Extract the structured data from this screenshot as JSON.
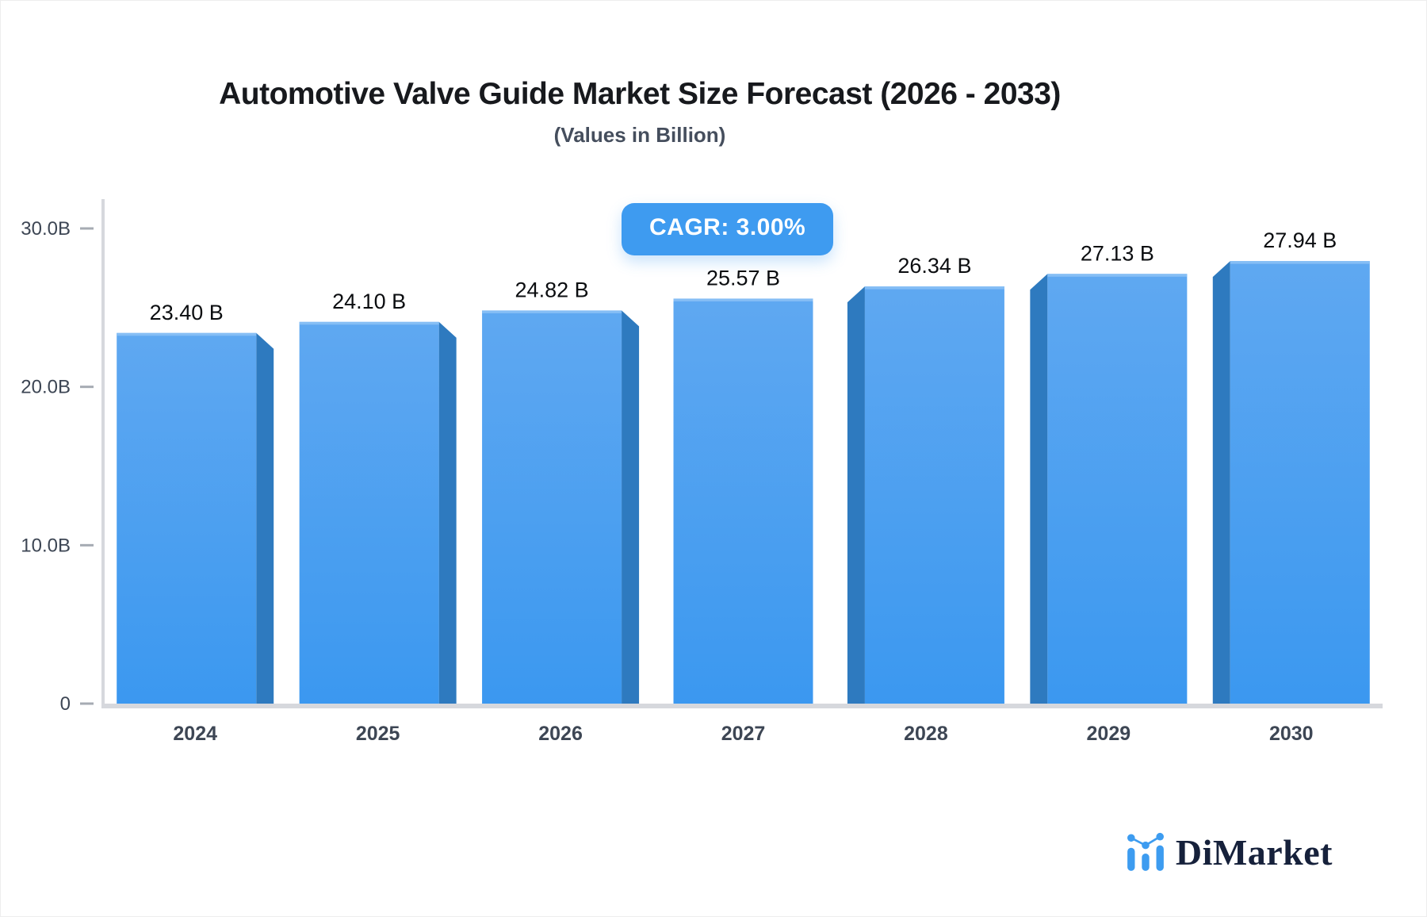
{
  "header": {
    "title": "Automotive Valve Guide Market Size Forecast (2026 - 2033)",
    "subtitle": "(Values in Billion)",
    "cagr_badge": "CAGR: 3.00%"
  },
  "chart_data": {
    "type": "bar",
    "title": "Automotive Valve Guide Market Size Forecast (2026 - 2033)",
    "subtitle": "(Values in Billion)",
    "annotation": "CAGR: 3.00%",
    "categories": [
      "2024",
      "2025",
      "2026",
      "2027",
      "2028",
      "2029",
      "2030"
    ],
    "values": [
      23.4,
      24.1,
      24.82,
      25.57,
      26.34,
      27.13,
      27.94
    ],
    "bar_labels": [
      "23.40 B",
      "24.10 B",
      "24.82 B",
      "25.57 B",
      "26.34 B",
      "27.13 B",
      "27.94 B"
    ],
    "xlabel": "",
    "ylabel": "",
    "ylim": [
      0,
      30
    ],
    "y_ticks": [
      {
        "value": 0,
        "label": "0"
      },
      {
        "value": 10,
        "label": "10.0B"
      },
      {
        "value": 20,
        "label": "20.0B"
      },
      {
        "value": 30,
        "label": "30.0B"
      }
    ],
    "grid": false,
    "legend": false,
    "style": "3d-perspective-bars",
    "colors": {
      "bar_front_top": "#5FA8F1",
      "bar_front_bottom": "#3B98F0",
      "bar_side": "#2E7ABF",
      "bar_highlight": "#8AC0F5",
      "axis": "#D6D8DD",
      "tick": "#A6ABB3",
      "axis_label": "#3D4654",
      "value_label": "#0B0D10",
      "badge_bg": "#3E9BF0",
      "badge_text": "#FFFFFF"
    }
  },
  "branding": {
    "logo_text": "DiMarket",
    "logo_icon": "bar-chart-trend-icon",
    "logo_accent": "#3D9CF0",
    "logo_text_color": "#16213B"
  }
}
